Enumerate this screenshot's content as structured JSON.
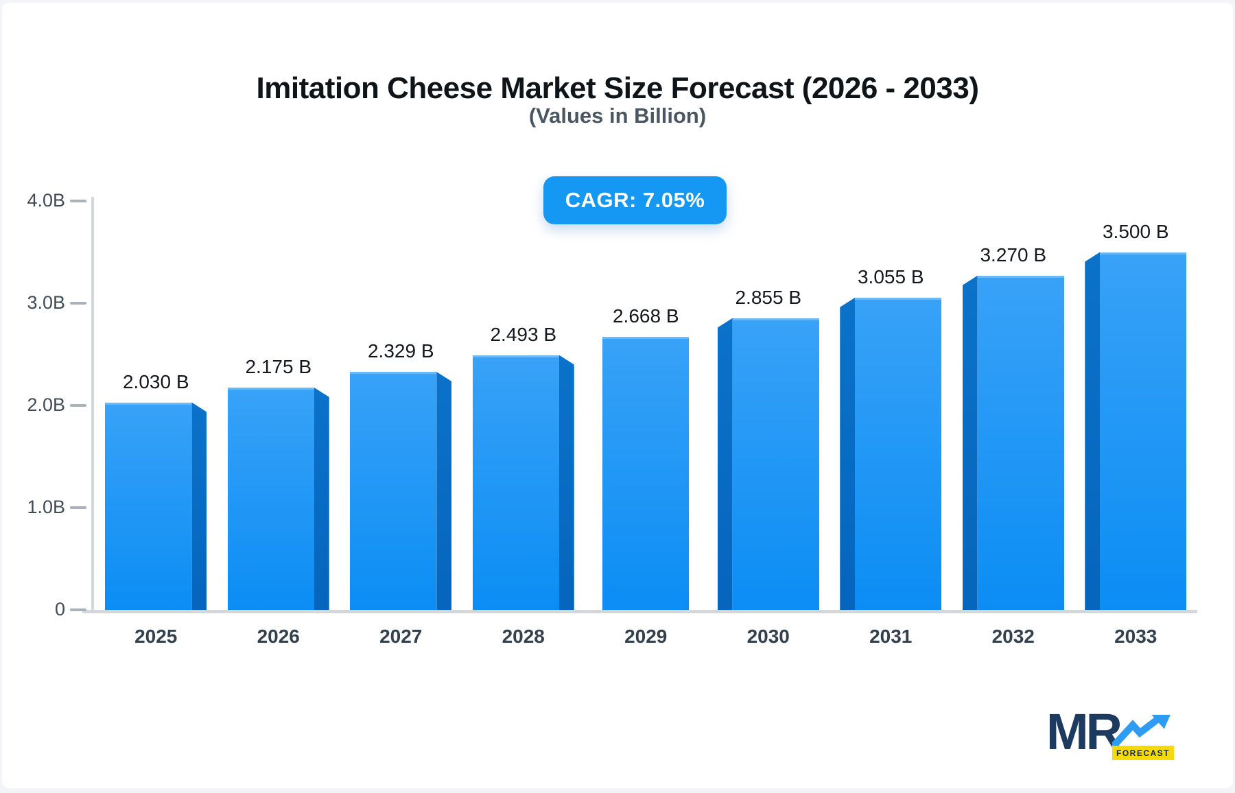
{
  "header": {
    "title": "Imitation Cheese Market Size Forecast (2026 - 2033)",
    "subtitle": "(Values in Billion)"
  },
  "badge": {
    "label": "CAGR: 7.05%"
  },
  "logo": {
    "text": "MR",
    "sub": "FORECAST",
    "arrow_icon": "trend-up-arrow"
  },
  "chart_data": {
    "type": "bar",
    "title": "Imitation Cheese Market Size Forecast (2026 - 2033)",
    "subtitle": "(Values in Billion)",
    "annotation": "CAGR: 7.05%",
    "categories": [
      "2025",
      "2026",
      "2027",
      "2028",
      "2029",
      "2030",
      "2031",
      "2032",
      "2033"
    ],
    "values": [
      2.03,
      2.175,
      2.329,
      2.493,
      2.668,
      2.855,
      3.055,
      3.27,
      3.5
    ],
    "value_labels": [
      "2.030 B",
      "2.175 B",
      "2.329 B",
      "2.493 B",
      "2.668 B",
      "2.855 B",
      "3.055 B",
      "3.270 B",
      "3.500 B"
    ],
    "unit": "Billion",
    "xlabel": "",
    "ylabel": "",
    "ylim": [
      0,
      4
    ],
    "y_ticks": {
      "labels": [
        "0",
        "1.0B",
        "2.0B",
        "3.0B",
        "4.0B"
      ],
      "values": [
        0,
        1,
        2,
        3,
        4
      ]
    },
    "grid": false,
    "legend": "none",
    "colors": {
      "bar_face_top": "#38a2f7",
      "bar_face_bottom": "#0b8df4",
      "bar_side_top": "#0b72c9",
      "bar_side_bottom": "#0665bd",
      "accent": "#1597f4",
      "axis": "#d3d7dc",
      "tick": "#a9b1ba",
      "logo_navy": "#1d3b60",
      "logo_yellow": "#f6d908",
      "logo_arrow_blue": "#2d9cf2"
    }
  }
}
